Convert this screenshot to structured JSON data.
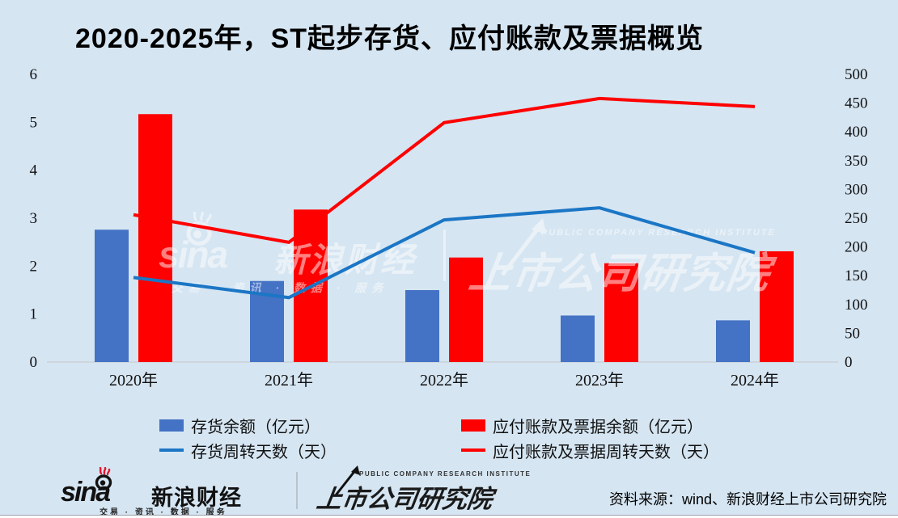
{
  "page": {
    "background": "#D5E5F2"
  },
  "chart_data": {
    "type": "combo",
    "title": "2020-2025年，ST起步存货、应付账款及票据概览",
    "categories": [
      "2020年",
      "2021年",
      "2022年",
      "2023年",
      "2024年"
    ],
    "left_axis": {
      "min": 0,
      "max": 6,
      "step": 1
    },
    "right_axis": {
      "min": 0,
      "max": 500,
      "step": 50
    },
    "grid": false,
    "legend_position": "bottom",
    "series": [
      {
        "name": "存货余额（亿元）",
        "type": "bar",
        "axis": "left",
        "color": "#4472C4",
        "values": [
          2.76,
          1.69,
          1.5,
          0.97,
          0.87
        ]
      },
      {
        "name": "应付账款及票据余额（亿元）",
        "type": "bar",
        "axis": "left",
        "color": "#FF0000",
        "values": [
          5.17,
          3.18,
          2.18,
          2.06,
          2.31
        ]
      },
      {
        "name": "存货周转天数（天）",
        "type": "line",
        "axis": "right",
        "color": "#1B76C5",
        "values": [
          147,
          112,
          247,
          268,
          190
        ]
      },
      {
        "name": "应付账款及票据周转天数（天）",
        "type": "line",
        "axis": "right",
        "color": "#FF0000",
        "values": [
          256,
          208,
          416,
          458,
          444
        ]
      }
    ]
  },
  "watermark": {
    "sina_text": "sina",
    "brand": "新浪财经",
    "tagline": "交易 · 资讯 · 数据 · 服务",
    "institute_en": "PUBLIC COMPANY RESEARCH INSTITUTE",
    "institute": "上市公司研究院"
  },
  "footer": {
    "sina_text": "sina",
    "brand": "新浪财经",
    "tagline": "交易 · 资讯 · 数据 · 服务",
    "institute_en": "PUBLIC COMPANY RESEARCH INSTITUTE",
    "institute": "上市公司研究院",
    "source": "资料来源：wind、新浪财经上市公司研究院"
  }
}
